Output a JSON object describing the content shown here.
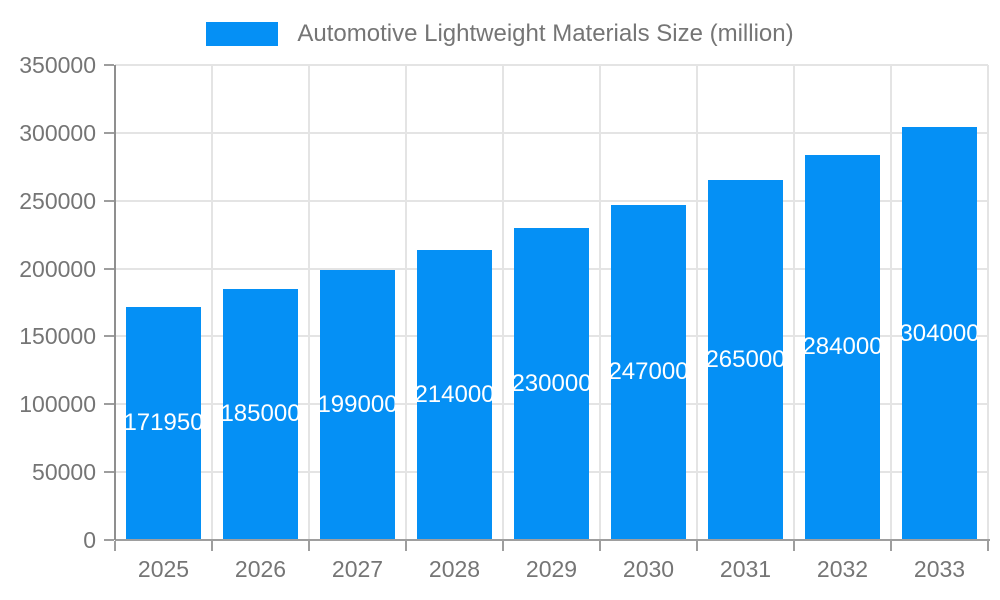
{
  "legend": {
    "label": "Automotive Lightweight Materials Size (million)"
  },
  "chart_data": {
    "type": "bar",
    "title": "Automotive Lightweight Materials Size (million)",
    "categories": [
      "2025",
      "2026",
      "2027",
      "2028",
      "2029",
      "2030",
      "2031",
      "2032",
      "2033"
    ],
    "values": [
      171950,
      185000,
      199000,
      214000,
      230000,
      247000,
      265000,
      284000,
      304000
    ],
    "bar_labels": [
      "171950",
      "185000",
      "199000",
      "214000",
      "230000",
      "247000",
      "265000",
      "284000",
      "304000"
    ],
    "xlabel": "",
    "ylabel": "",
    "ylim": [
      0,
      350000
    ],
    "yticks": [
      0,
      50000,
      100000,
      150000,
      200000,
      250000,
      300000,
      350000
    ],
    "grid": true,
    "legend_position": "top",
    "colors": {
      "bar": "#0590f5",
      "grid": "#e4e4e4",
      "axis_x": "#9e9e9e",
      "axis_y": "#8f8f8f",
      "tick": "#9e9e9e",
      "tick_text": "#757575",
      "bar_label": "#ffffff",
      "background": "#ffffff"
    }
  }
}
